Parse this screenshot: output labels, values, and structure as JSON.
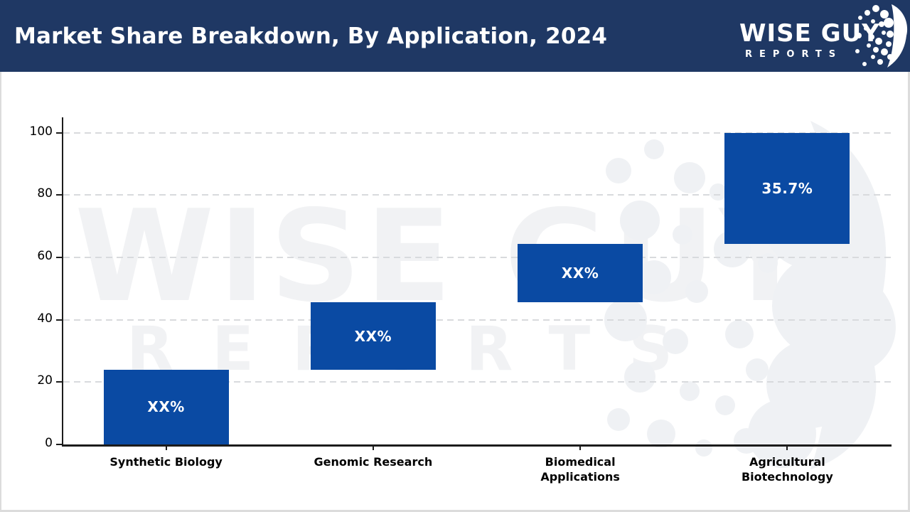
{
  "header": {
    "title": "Market Share Breakdown, By Application, 2024",
    "logo_line1": "WISE GUY",
    "logo_line2": "REPORTS",
    "bg_color": "#1f3864",
    "text_color": "#ffffff"
  },
  "watermark": {
    "line1": "WISE GUY",
    "line2": "REPORTS"
  },
  "chart_data": {
    "type": "bar",
    "subtype": "floating-segment-waterfall",
    "title": "Market Share Breakdown, By Application, 2024",
    "categories": [
      "Synthetic Biology",
      "Genomic Research",
      "Biomedical Applications",
      "Agricultural Biotechnology"
    ],
    "category_label_lines": [
      [
        "Synthetic Biology"
      ],
      [
        "Genomic Research"
      ],
      [
        "Biomedical",
        "Applications"
      ],
      [
        "Agricultural",
        "Biotechnology"
      ]
    ],
    "series": [
      {
        "name": "Market share (%)",
        "segments": [
          {
            "category": "Synthetic Biology",
            "start": 0,
            "end": 24,
            "value_label": "XX%"
          },
          {
            "category": "Genomic Research",
            "start": 24,
            "end": 45.5,
            "value_label": "XX%"
          },
          {
            "category": "Biomedical Applications",
            "start": 45.5,
            "end": 64.3,
            "value_label": "XX%"
          },
          {
            "category": "Agricultural Biotechnology",
            "start": 64.3,
            "end": 100,
            "value_label": "35.7%"
          }
        ]
      }
    ],
    "xlabel": "",
    "ylabel": "",
    "ylim": [
      0,
      100
    ],
    "yticks": [
      0,
      20,
      40,
      60,
      80,
      100
    ],
    "grid": "horizontal-dashed",
    "legend": "none",
    "bar_color": "#0a4aa3",
    "bar_label_color": "#ffffff",
    "axis_color": "#1c1c1c",
    "gridline_color": "#d8dadd"
  }
}
